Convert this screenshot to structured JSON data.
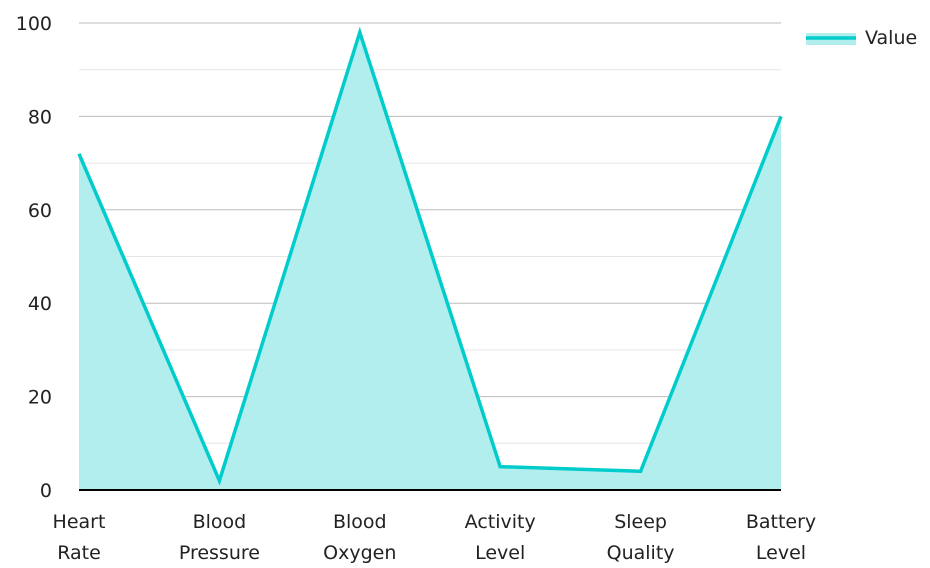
{
  "chart_data": {
    "type": "area",
    "categories": [
      [
        "Heart",
        "Rate"
      ],
      [
        "Blood",
        "Pressure"
      ],
      [
        "Blood",
        "Oxygen"
      ],
      [
        "Activity",
        "Level"
      ],
      [
        "Sleep",
        "Quality"
      ],
      [
        "Battery",
        "Level"
      ]
    ],
    "series": [
      {
        "name": "Value",
        "values": [
          72,
          2,
          98,
          5,
          4,
          80
        ]
      }
    ],
    "ylim": [
      0,
      100
    ],
    "yticks": [
      "0",
      "20",
      "40",
      "60",
      "80",
      "100"
    ],
    "grid": true,
    "legend_position": "top-right",
    "colors": {
      "line": "#00cccc",
      "fill": "#b2eeee",
      "grid_major": "#bdbdbd",
      "grid_minor": "#e6e6e6",
      "axis": "#000000"
    }
  }
}
